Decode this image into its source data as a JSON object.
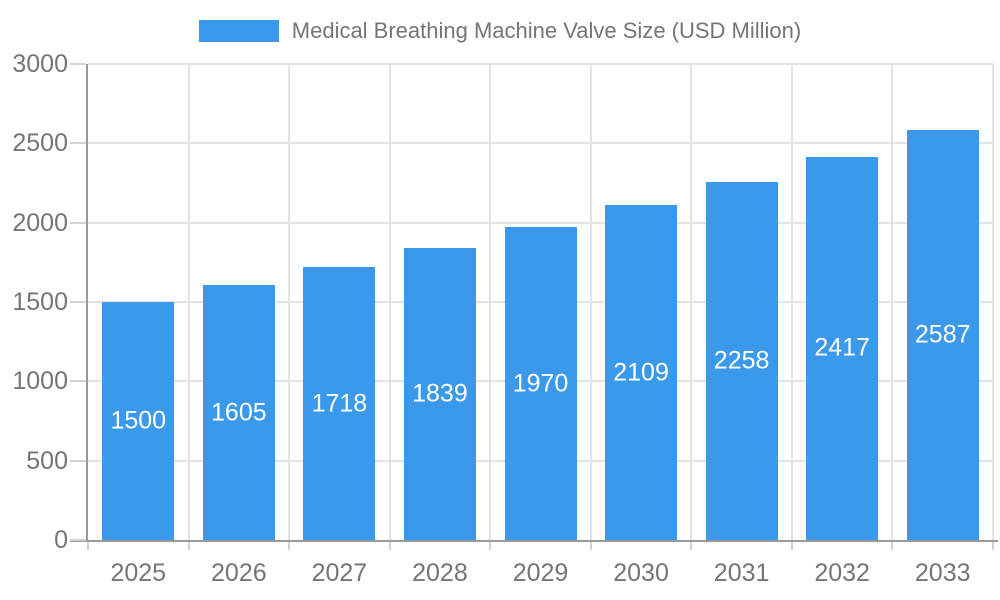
{
  "legend": {
    "label": "Medical Breathing Machine Valve Size (USD Million)",
    "swatch_color": "#3B99EC"
  },
  "chart_data": {
    "type": "bar",
    "title": "Medical Breathing Machine Valve Size (USD Million)",
    "categories": [
      "2025",
      "2026",
      "2027",
      "2028",
      "2029",
      "2030",
      "2031",
      "2032",
      "2033"
    ],
    "values": [
      1500,
      1605,
      1718,
      1839,
      1970,
      2109,
      2258,
      2417,
      2587
    ],
    "series_name": "Medical Breathing Machine Valve Size (USD Million)",
    "xlabel": "",
    "ylabel": "",
    "ylim": [
      0,
      3000
    ],
    "yticks": [
      0,
      500,
      1000,
      1500,
      2000,
      2500,
      3000
    ],
    "grid": true,
    "legend_position": "top-center",
    "value_labels": "inside-center",
    "bar_color": "#3B99EC",
    "value_label_color": "#FFFFFF"
  },
  "colors": {
    "bar": "#3B99EC",
    "grid_line": "#E4E4E4",
    "axis_line": "#999999",
    "tick_mark": "#D2D2D2",
    "axis_text": "#757575",
    "value_text": "#FFFFFF",
    "background": "#FFFFFF"
  }
}
